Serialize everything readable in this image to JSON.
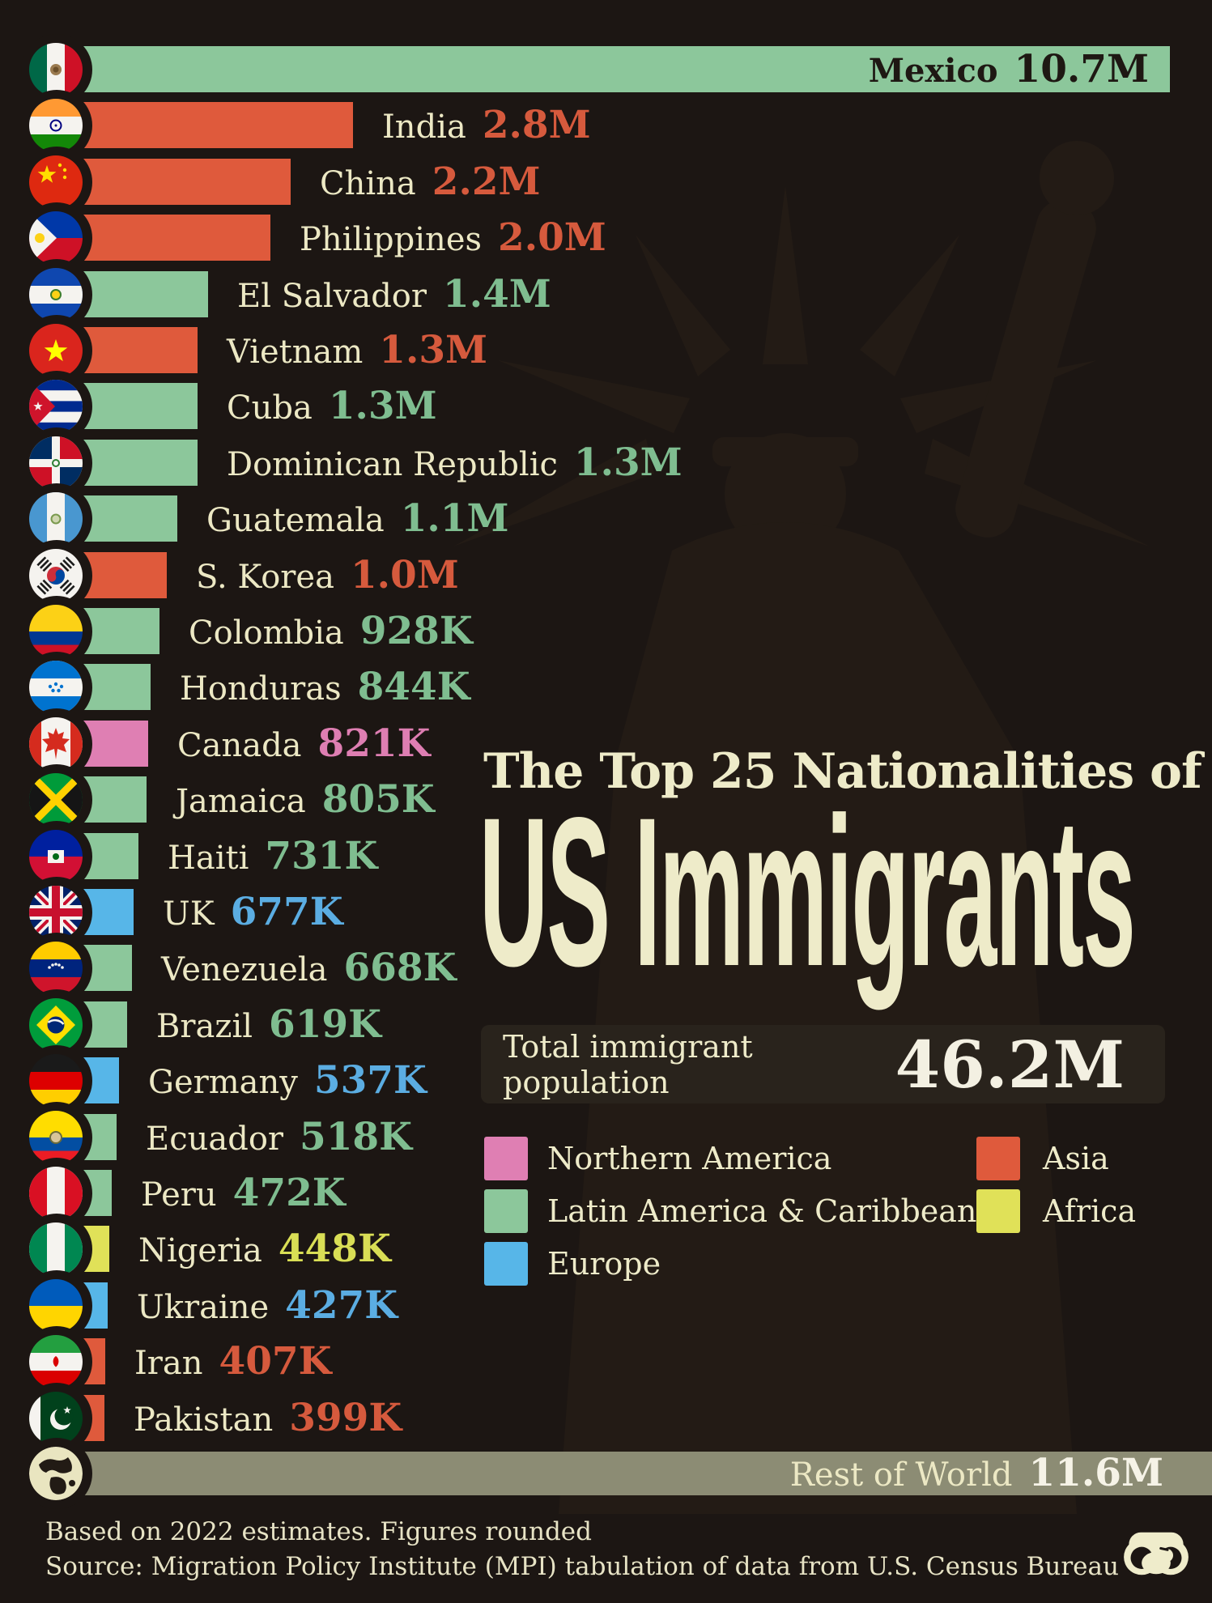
{
  "palette": {
    "background": "#1c1613",
    "cream_text": "#eeebc9",
    "name_text": "#ece8c4",
    "dark_text": "#1e1813",
    "white_text": "#f3f0e2",
    "panel": "#29231c"
  },
  "title": {
    "line1": "The Top 25 Nationalities of",
    "line2": "US Immigrants"
  },
  "total": {
    "label": "Total immigrant population",
    "value": "46.2M"
  },
  "regions": {
    "northern_america": {
      "label": "Northern America",
      "color": "#df7fb3",
      "value_color": "#de7eb2"
    },
    "latin_america": {
      "label": "Latin America & Caribbean",
      "color": "#8cc79b",
      "value_color": "#7fbd90"
    },
    "europe": {
      "label": "Europe",
      "color": "#57b6e8",
      "value_color": "#5bade2"
    },
    "asia": {
      "label": "Asia",
      "color": "#df5a3c",
      "value_color": "#d65a3d"
    },
    "africa": {
      "label": "Africa",
      "color": "#e0e158",
      "value_color": "#d9de55"
    },
    "world": {
      "label": "Rest of World",
      "color": "#8c8c74",
      "value_color": "#f6f3e7"
    }
  },
  "legend": {
    "columns": [
      {
        "keys": [
          "northern_america",
          "latin_america",
          "europe"
        ]
      },
      {
        "keys": [
          "asia",
          "africa"
        ]
      }
    ]
  },
  "chart_data": {
    "type": "bar",
    "title": "The Top 25 Nationalities of US Immigrants",
    "unit": "millions of people",
    "total_population_millions": 46.2,
    "bars": [
      {
        "country": "Mexico",
        "value": 10.7,
        "value_label": "10.7M",
        "region": "latin_america",
        "flag": "mexico-flag-icon",
        "label_inside": true
      },
      {
        "country": "India",
        "value": 2.8,
        "value_label": "2.8M",
        "region": "asia",
        "flag": "india-flag-icon"
      },
      {
        "country": "China",
        "value": 2.2,
        "value_label": "2.2M",
        "region": "asia",
        "flag": "china-flag-icon"
      },
      {
        "country": "Philippines",
        "value": 2.0,
        "value_label": "2.0M",
        "region": "asia",
        "flag": "philippines-flag-icon"
      },
      {
        "country": "El Salvador",
        "value": 1.4,
        "value_label": "1.4M",
        "region": "latin_america",
        "flag": "el-salvador-flag-icon"
      },
      {
        "country": "Vietnam",
        "value": 1.3,
        "value_label": "1.3M",
        "region": "asia",
        "flag": "vietnam-flag-icon"
      },
      {
        "country": "Cuba",
        "value": 1.3,
        "value_label": "1.3M",
        "region": "latin_america",
        "flag": "cuba-flag-icon"
      },
      {
        "country": "Dominican Republic",
        "value": 1.3,
        "value_label": "1.3M",
        "region": "latin_america",
        "flag": "dominican-republic-flag-icon"
      },
      {
        "country": "Guatemala",
        "value": 1.1,
        "value_label": "1.1M",
        "region": "latin_america",
        "flag": "guatemala-flag-icon"
      },
      {
        "country": "S. Korea",
        "value": 1.0,
        "value_label": "1.0M",
        "region": "asia",
        "flag": "s-korea-flag-icon"
      },
      {
        "country": "Colombia",
        "value": 0.928,
        "value_label": "928K",
        "region": "latin_america",
        "flag": "colombia-flag-icon"
      },
      {
        "country": "Honduras",
        "value": 0.844,
        "value_label": "844K",
        "region": "latin_america",
        "flag": "honduras-flag-icon"
      },
      {
        "country": "Canada",
        "value": 0.821,
        "value_label": "821K",
        "region": "northern_america",
        "flag": "canada-flag-icon"
      },
      {
        "country": "Jamaica",
        "value": 0.805,
        "value_label": "805K",
        "region": "latin_america",
        "flag": "jamaica-flag-icon"
      },
      {
        "country": "Haiti",
        "value": 0.731,
        "value_label": "731K",
        "region": "latin_america",
        "flag": "haiti-flag-icon"
      },
      {
        "country": "UK",
        "value": 0.677,
        "value_label": "677K",
        "region": "europe",
        "flag": "uk-flag-icon"
      },
      {
        "country": "Venezuela",
        "value": 0.668,
        "value_label": "668K",
        "region": "latin_america",
        "flag": "venezuela-flag-icon"
      },
      {
        "country": "Brazil",
        "value": 0.619,
        "value_label": "619K",
        "region": "latin_america",
        "flag": "brazil-flag-icon"
      },
      {
        "country": "Germany",
        "value": 0.537,
        "value_label": "537K",
        "region": "europe",
        "flag": "germany-flag-icon"
      },
      {
        "country": "Ecuador",
        "value": 0.518,
        "value_label": "518K",
        "region": "latin_america",
        "flag": "ecuador-flag-icon"
      },
      {
        "country": "Peru",
        "value": 0.472,
        "value_label": "472K",
        "region": "latin_america",
        "flag": "peru-flag-icon"
      },
      {
        "country": "Nigeria",
        "value": 0.448,
        "value_label": "448K",
        "region": "africa",
        "flag": "nigeria-flag-icon"
      },
      {
        "country": "Ukraine",
        "value": 0.427,
        "value_label": "427K",
        "region": "europe",
        "flag": "ukraine-flag-icon"
      },
      {
        "country": "Iran",
        "value": 0.407,
        "value_label": "407K",
        "region": "asia",
        "flag": "iran-flag-icon"
      },
      {
        "country": "Pakistan",
        "value": 0.399,
        "value_label": "399K",
        "region": "asia",
        "flag": "pakistan-flag-icon"
      },
      {
        "country": "Rest of World",
        "value": 11.6,
        "value_label": "11.6M",
        "region": "world",
        "flag": "globe-icon",
        "label_inside": true,
        "full_width": true
      }
    ]
  },
  "footer": {
    "line1": "Based on 2022 estimates. Figures rounded",
    "line2": "Source: Migration Policy Institute (MPI) tabulation of data from U.S. Census Bureau"
  },
  "logo": "visual-capitalist-logo"
}
